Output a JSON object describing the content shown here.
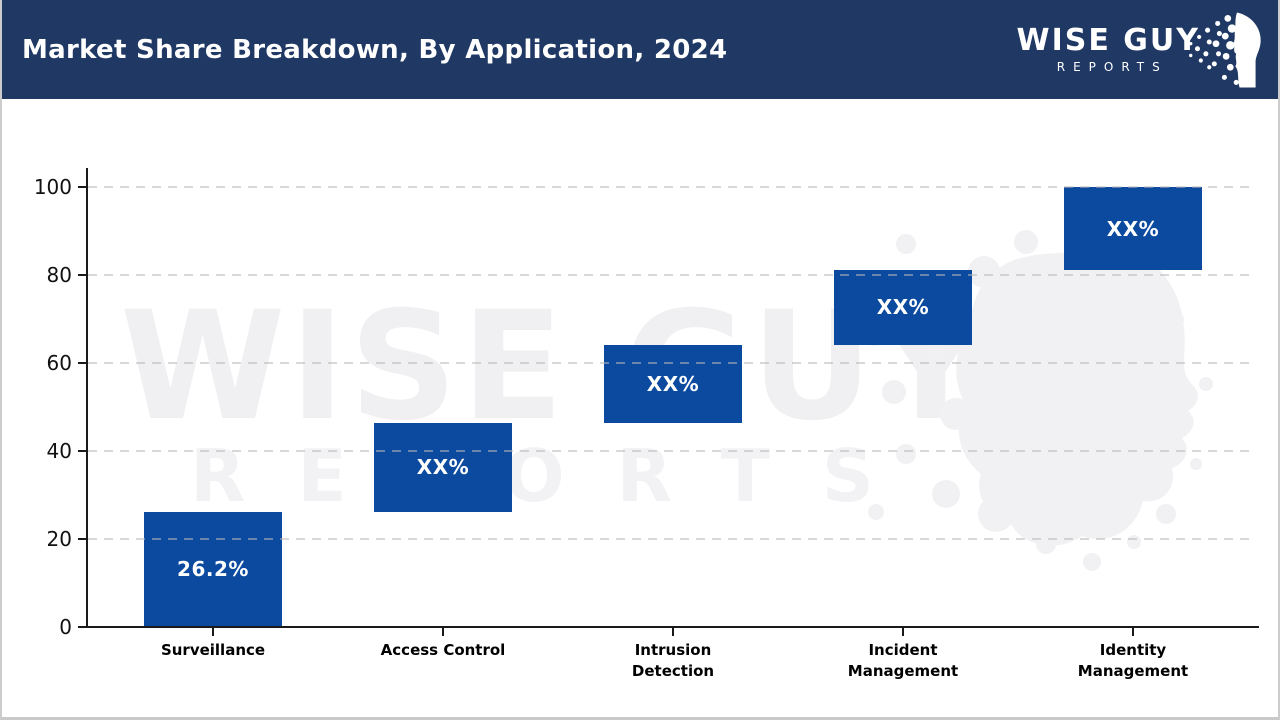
{
  "header": {
    "title": "Market Share Breakdown, By Application, 2024",
    "logo_line1": "WISE GUY",
    "logo_line2": "REPORTS"
  },
  "watermark": {
    "line1": "WISE GUY",
    "line2": "REPORTS"
  },
  "chart_data": {
    "type": "bar",
    "subtype": "waterfall",
    "title": "Market Share Breakdown, By Application, 2024",
    "categories": [
      "Surveillance",
      "Access Control",
      "Intrusion Detection",
      "Incident Management",
      "Identity Management"
    ],
    "tick_labels": [
      "Surveillance",
      "Access Control",
      "Intrusion\nDetection",
      "Incident\nManagement",
      "Identity\nManagement"
    ],
    "segments": [
      {
        "category": "Surveillance",
        "start": 0,
        "end": 26.2,
        "label": "26.2%"
      },
      {
        "category": "Access Control",
        "start": 26.2,
        "end": 46.3,
        "label": "XX%"
      },
      {
        "category": "Intrusion Detection",
        "start": 46.3,
        "end": 64.2,
        "label": "XX%"
      },
      {
        "category": "Incident Management",
        "start": 64.2,
        "end": 81.1,
        "label": "XX%"
      },
      {
        "category": "Identity Management",
        "start": 81.1,
        "end": 100,
        "label": "XX%"
      }
    ],
    "y_ticks": [
      0,
      20,
      40,
      60,
      80,
      100
    ],
    "ylim": [
      0,
      104
    ],
    "xlabel": "",
    "ylabel": "",
    "grid": "horizontal-dashed",
    "legend_position": "none",
    "colors": {
      "bar": "#0b4a9e",
      "bar_label": "#ffffff",
      "header_bg": "#1f3864",
      "grid_line": "#d8d8d8",
      "axis": "#1a1a1a",
      "watermark": "#f1f1f3"
    }
  }
}
